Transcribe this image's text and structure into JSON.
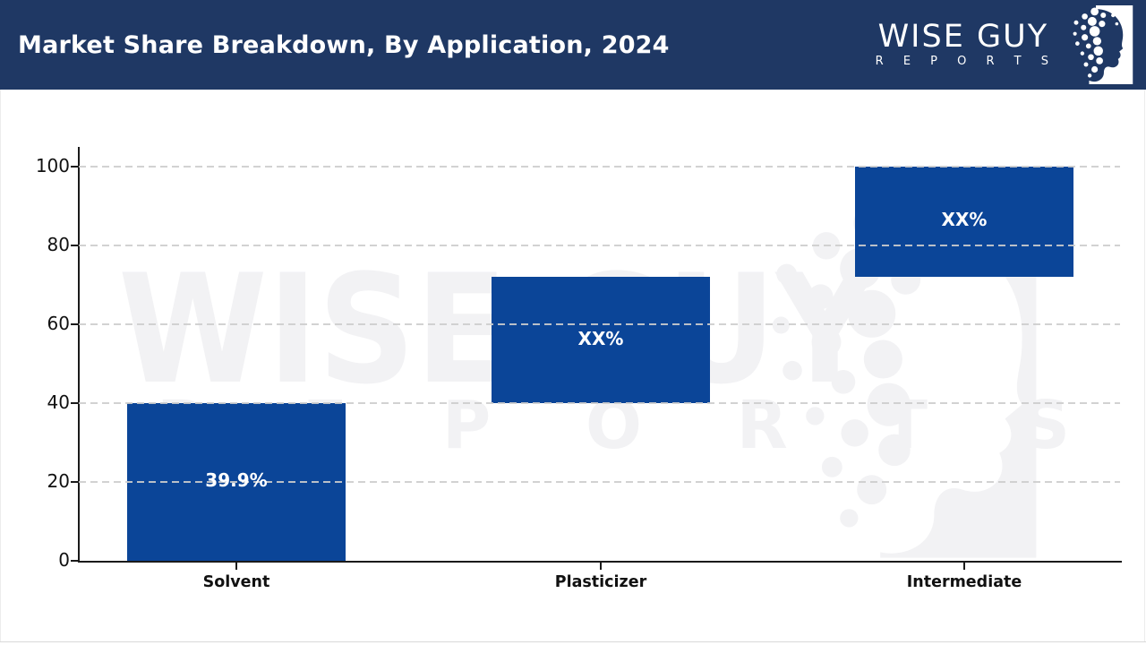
{
  "header": {
    "title": "Market Share Breakdown, By Application, 2024",
    "logo": {
      "line1": "WISE GUY",
      "line2": "R E P O R T S"
    }
  },
  "watermark": {
    "line1": "WISE GUY",
    "line2": "R E P O R T S"
  },
  "colors": {
    "header_bg": "#1f3864",
    "bar": "#0b4598",
    "grid": "#cdcdcd",
    "axis": "#1a1a1a",
    "bar_label": "#ffffff",
    "watermark": "#f2f2f4"
  },
  "chart_data": {
    "type": "bar",
    "subtype": "waterfall-stacked-percent",
    "title": "Market Share Breakdown, By Application, 2024",
    "categories": [
      "Solvent",
      "Plasticizer",
      "Intermediate"
    ],
    "series": [
      {
        "name": "Market Share %",
        "points": [
          {
            "category": "Solvent",
            "start": 0,
            "end": 39.9,
            "label": "39.9%"
          },
          {
            "category": "Plasticizer",
            "start": 39.9,
            "end": 72.1,
            "label": "XX%"
          },
          {
            "category": "Intermediate",
            "start": 72.1,
            "end": 100,
            "label": "XX%"
          }
        ]
      }
    ],
    "xlabel": "",
    "ylabel": "",
    "ylim": [
      0,
      100
    ],
    "yticks": [
      0,
      20,
      40,
      60,
      80,
      100
    ],
    "grid": "horizontal-dashed",
    "legend": "none"
  }
}
